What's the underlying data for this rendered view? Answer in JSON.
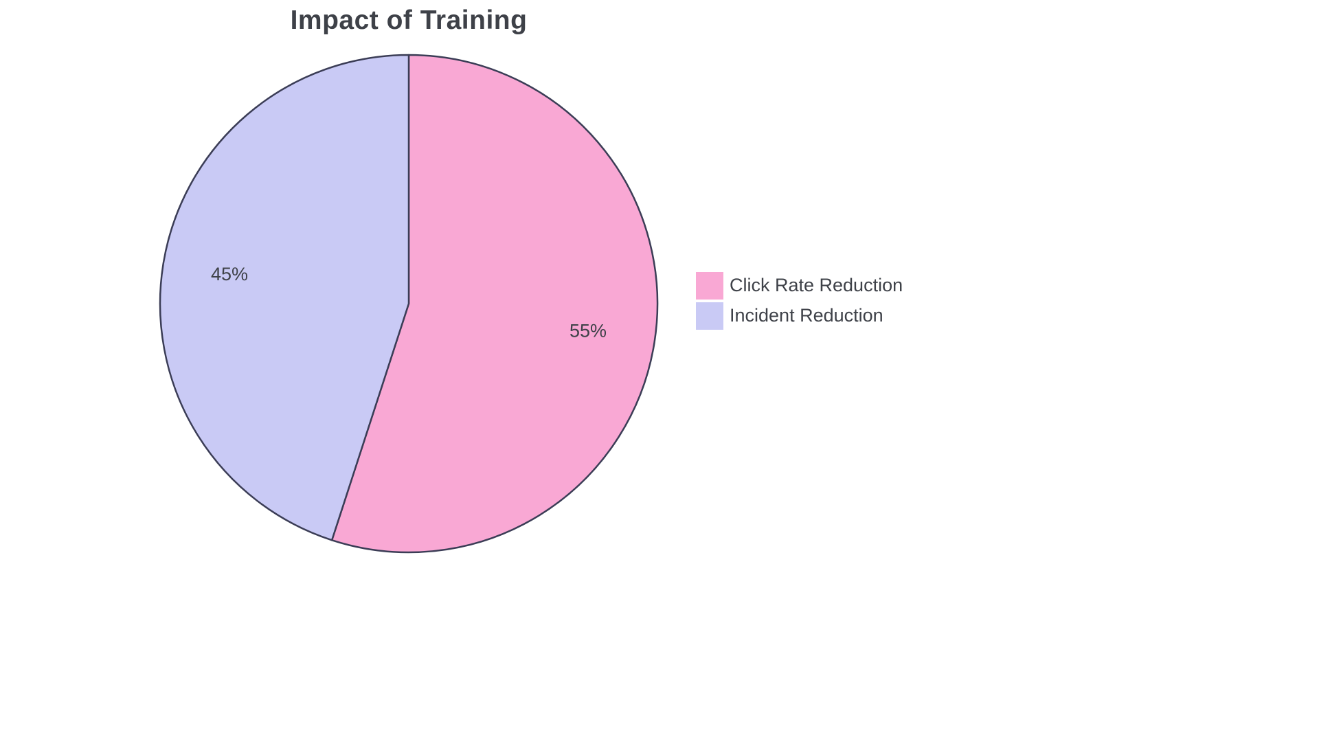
{
  "chart_data": {
    "type": "pie",
    "title": "Impact of Training",
    "slices": [
      {
        "label": "Click Rate Reduction",
        "value": 55,
        "display": "55%",
        "color": "#F9A8D4"
      },
      {
        "label": "Incident Reduction",
        "value": 45,
        "display": "45%",
        "color": "#C9CAF5"
      }
    ],
    "start_angle_deg": 0,
    "direction": "clockwise",
    "stroke_color": "#3B3D56",
    "stroke_width": 2.5,
    "label_color": "#3E4148",
    "label_radius_fraction": 0.73,
    "legend_position": "right",
    "background": "#FFFFFF"
  }
}
